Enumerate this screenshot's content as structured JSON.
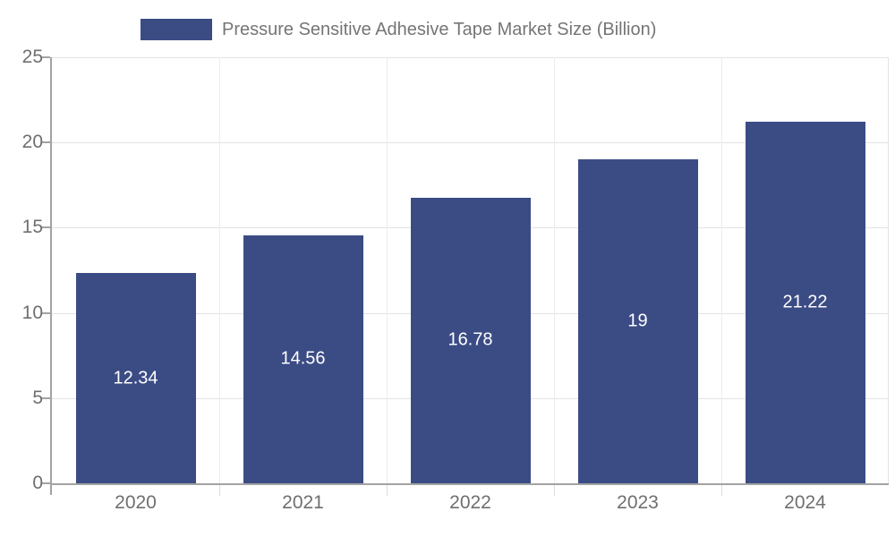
{
  "chart_data": {
    "type": "bar",
    "title": "Pressure Sensitive Adhesive Tape Market Size (Billion)",
    "legend_label": "Pressure Sensitive Adhesive Tape Market Size (Billion)",
    "legend_position": "top",
    "categories": [
      "2020",
      "2021",
      "2022",
      "2023",
      "2024"
    ],
    "values": [
      12.34,
      14.56,
      16.78,
      19,
      21.22
    ],
    "value_labels": [
      "12.34",
      "14.56",
      "16.78",
      "19",
      "21.22"
    ],
    "xlabel": "",
    "ylabel": "",
    "ylim": [
      0,
      25
    ],
    "yticks": [
      0,
      5,
      10,
      15,
      20,
      25
    ],
    "grid": true,
    "colors": {
      "bar": "#3b4c85",
      "value_label": "#ffffff",
      "legend_text": "#757575",
      "tick_label": "#6f6f6f",
      "axis_line": "#a3a3a3",
      "gridline": "#e3e3e3",
      "boundary_gridline": "#ececec",
      "boundary_tick": "#dcdcdc",
      "background": "#ffffff"
    }
  }
}
